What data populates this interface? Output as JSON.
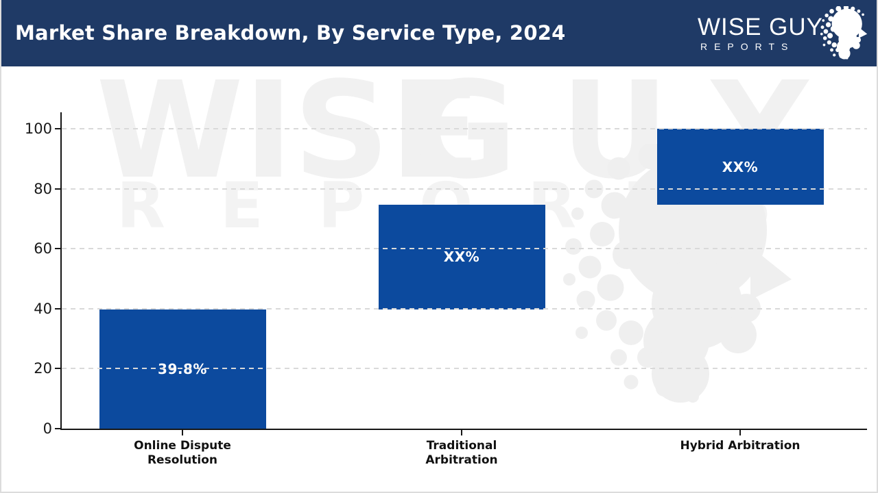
{
  "header": {
    "title": "Market Share Breakdown, By Service Type, 2024"
  },
  "brand": {
    "wordmark": "WISE GUY",
    "subtext": "REPORTS",
    "icon": "dotted-face-profile"
  },
  "watermark": {
    "word1": "WISE",
    "word2": "G",
    "word3": "U",
    "word4": "Y",
    "reports": "REPORTS"
  },
  "colors": {
    "header_bg": "#1f3a66",
    "bar": "#0c4a9e",
    "gridline": "#d9d9d9",
    "axis": "#161616",
    "watermark": "#f1f1f1",
    "text": "#111111",
    "title_text": "#ffffff"
  },
  "chart_data": {
    "type": "bar",
    "variant": "floating-stacked-segments",
    "title": "Market Share Breakdown, By Service Type, 2024",
    "xlabel": "",
    "ylabel": "",
    "ylim": [
      0,
      105
    ],
    "yticks": [
      0,
      20,
      40,
      60,
      80,
      100
    ],
    "grid": "horizontal-dashed",
    "legend": null,
    "categories": [
      {
        "lines": [
          "Online Dispute",
          "Resolution"
        ]
      },
      {
        "lines": [
          "Traditional",
          "Arbitration"
        ]
      },
      {
        "lines": [
          "Hybrid Arbitration"
        ]
      }
    ],
    "bars": [
      {
        "category": "Online Dispute Resolution",
        "label": "39.8%",
        "start": 0,
        "end": 39.8
      },
      {
        "category": "Traditional Arbitration",
        "label": "XX%",
        "start": 39.8,
        "end": 74.6
      },
      {
        "category": "Hybrid Arbitration",
        "label": "XX%",
        "start": 74.6,
        "end": 100
      }
    ]
  }
}
